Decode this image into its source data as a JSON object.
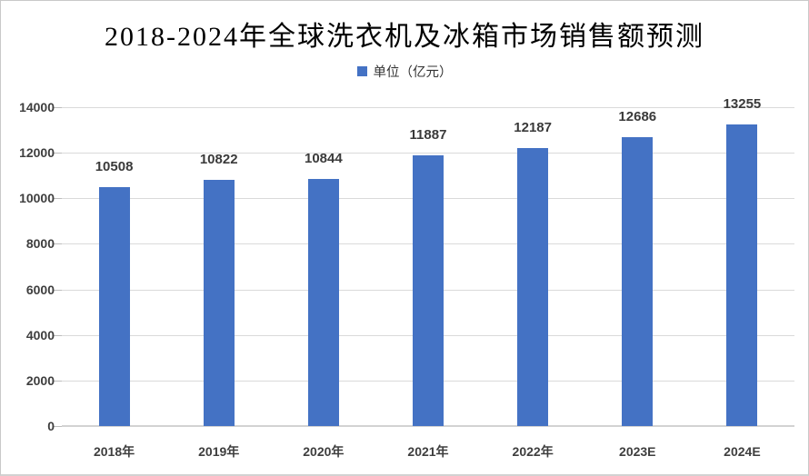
{
  "chart_data": {
    "type": "bar",
    "title": "2018-2024年全球洗衣机及冰箱市场销售额预测",
    "legend": {
      "label": "单位（亿元）",
      "position": "top"
    },
    "categories": [
      "2018年",
      "2019年",
      "2020年",
      "2021年",
      "2022年",
      "2023E",
      "2024E"
    ],
    "series": [
      {
        "name": "单位（亿元）",
        "values": [
          10508,
          10822,
          10844,
          11887,
          12187,
          12686,
          13255
        ]
      }
    ],
    "xlabel": "",
    "ylabel": "",
    "ylim": [
      0,
      14000
    ],
    "yticks": [
      0,
      2000,
      4000,
      6000,
      8000,
      10000,
      12000,
      14000
    ],
    "grid": true,
    "data_labels": true
  },
  "colors": {
    "bar": "#4472C4",
    "gridline": "#dadada",
    "axis_line": "#d2d2d2",
    "title_text": "#000000",
    "label_text": "#3e3e3e",
    "frame_border": "#c9c9c9"
  }
}
